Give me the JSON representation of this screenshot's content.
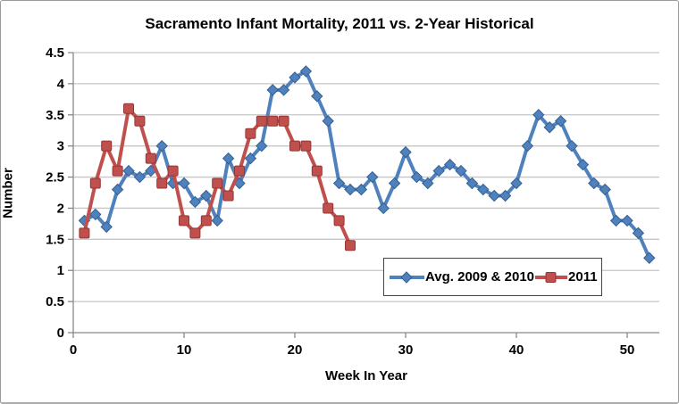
{
  "title": "Sacramento Infant Mortality, 2011 vs. 2-Year Historical",
  "chart_data": {
    "type": "line",
    "title": "Sacramento Infant Mortality, 2011 vs. 2-Year Historical",
    "xlabel": "Week In Year",
    "ylabel": "Number",
    "xlim": [
      0,
      53
    ],
    "ylim": [
      0,
      4.5
    ],
    "x_ticks": [
      0,
      10,
      20,
      30,
      40,
      50
    ],
    "y_ticks": [
      "0",
      "0.5",
      "1",
      "1.5",
      "2",
      "2.5",
      "3",
      "3.5",
      "4",
      "4.5"
    ],
    "grid": true,
    "legend_position": "inside-lower-right",
    "x_unit": "week",
    "x": [
      1,
      2,
      3,
      4,
      5,
      6,
      7,
      8,
      9,
      10,
      11,
      12,
      13,
      14,
      15,
      16,
      17,
      18,
      19,
      20,
      21,
      22,
      23,
      24,
      25,
      26,
      27,
      28,
      29,
      30,
      31,
      32,
      33,
      34,
      35,
      36,
      37,
      38,
      39,
      40,
      41,
      42,
      43,
      44,
      45,
      46,
      47,
      48,
      49,
      50,
      51,
      52
    ],
    "series": [
      {
        "name": "Avg. 2009 & 2010",
        "marker": "diamond",
        "color": "#4F81BD",
        "edge_color": "#356092",
        "values": [
          1.8,
          1.9,
          1.7,
          2.3,
          2.6,
          2.5,
          2.6,
          3.0,
          2.4,
          2.4,
          2.1,
          2.2,
          1.8,
          2.8,
          2.4,
          2.8,
          3.0,
          3.9,
          3.9,
          4.1,
          4.2,
          3.8,
          3.4,
          2.4,
          2.3,
          2.3,
          2.5,
          2.0,
          2.4,
          2.9,
          2.5,
          2.4,
          2.6,
          2.7,
          2.6,
          2.4,
          2.3,
          2.2,
          2.2,
          2.4,
          3.0,
          3.5,
          3.3,
          3.4,
          3.0,
          2.7,
          2.4,
          2.3,
          1.8,
          1.8,
          1.6,
          1.2
        ]
      },
      {
        "name": "2011",
        "marker": "square",
        "color": "#C0504D",
        "edge_color": "#943634",
        "values": [
          1.6,
          2.4,
          3.0,
          2.6,
          3.6,
          3.4,
          2.8,
          2.4,
          2.6,
          1.8,
          1.6,
          1.8,
          2.4,
          2.2,
          2.6,
          3.2,
          3.4,
          3.4,
          3.4,
          3.0,
          3.0,
          2.6,
          2.0,
          1.8,
          1.4
        ]
      }
    ],
    "colors": {
      "gridline": "#C6C6C6",
      "axis": "#898989",
      "tick_label": "#000000",
      "background": "#FFFFFF"
    }
  }
}
